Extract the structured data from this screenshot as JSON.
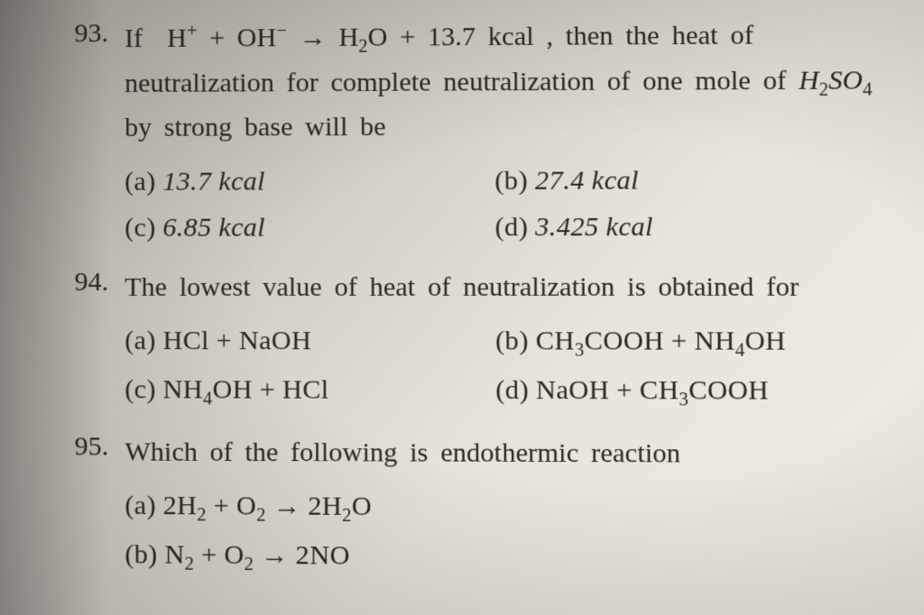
{
  "questions": [
    {
      "num": "93.",
      "text_html": "If&nbsp; H<sup>+</sup> + OH<sup>&minus;</sup> &rarr; H<sub>2</sub>O + 13.7 kcal , then the heat of neutralization for complete neutralization of one mole of <span class='ital'>H</span><sub>2</sub><span class='ital'>SO</span><sub>4</sub> by strong base will be",
      "options": [
        {
          "label": "(a)",
          "html": "13.7 <span class='ital'>kcal</span>",
          "cls": "opt-left"
        },
        {
          "label": "(b)",
          "html": "27.4 <span class='ital'>kcal</span>",
          "cls": "opt-right"
        },
        {
          "label": "(c)",
          "html": "6.85 <span class='ital'>kcal</span>",
          "cls": "opt-left"
        },
        {
          "label": "(d)",
          "html": "3.425 <span class='ital'>kcal</span>",
          "cls": "opt-right"
        }
      ]
    },
    {
      "num": "94.",
      "text_html": "The lowest value of heat of neutralization is obtained for",
      "options": [
        {
          "label": "(a)",
          "html": "<span class='chem'>HCl + NaOH</span>",
          "cls": "opt-left"
        },
        {
          "label": "(b)",
          "html": "<span class='chem'>CH<sub>3</sub>COOH + NH<sub>4</sub>OH</span>",
          "cls": "opt-right"
        },
        {
          "label": "(c)",
          "html": "<span class='chem'>NH<sub>4</sub>OH + HCl</span>",
          "cls": "opt-left"
        },
        {
          "label": "(d)",
          "html": "<span class='chem'>NaOH + CH<sub>3</sub>COOH</span>",
          "cls": "opt-right"
        }
      ]
    },
    {
      "num": "95.",
      "text_html": "Which of the following is endothermic reaction",
      "options": [
        {
          "label": "(a)",
          "html": "<span class='chem'>2H<sub>2</sub> + O<sub>2</sub> &rarr; 2H<sub>2</sub>O</span>",
          "cls": "opt-full"
        },
        {
          "label": "(b)",
          "html": "<span class='chem'>N<sub>2</sub> + O<sub>2</sub> &rarr; 2NO</span>",
          "cls": "opt-full"
        }
      ]
    }
  ],
  "colors": {
    "text": "#2a2824",
    "bg_light": "#f0ece4",
    "bg_dark": "#b8b4ac"
  }
}
